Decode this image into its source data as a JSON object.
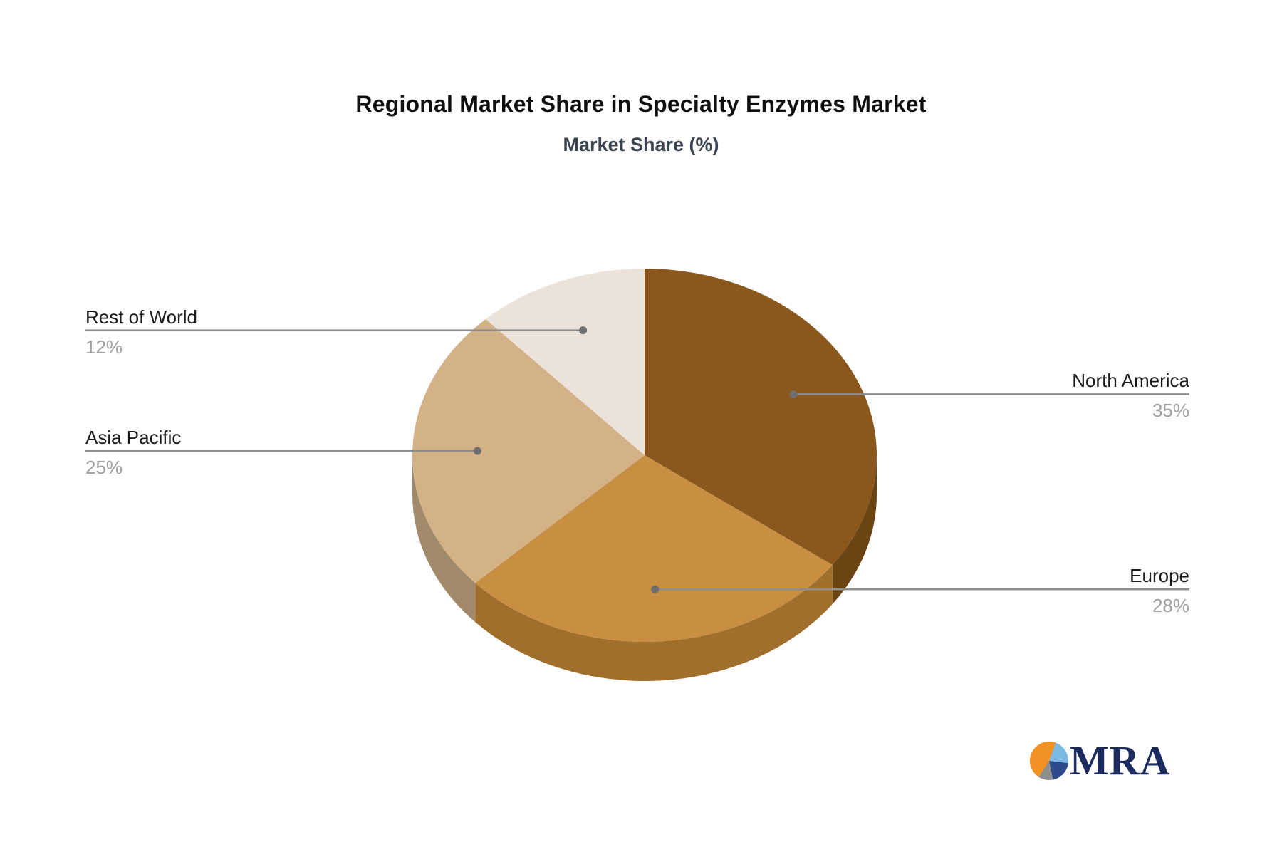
{
  "chart_data": {
    "type": "pie",
    "style": "3d",
    "title": "Regional Market Share in Specialty Enzymes Market",
    "subtitle": "Market Share (%)",
    "unit": "%",
    "start_angle_deg": 0,
    "direction": "clockwise",
    "legend_position": "callout-labels",
    "slices": [
      {
        "label": "North America",
        "value": 35,
        "pct_label": "35%",
        "color": "#8a571c",
        "side_color": "#6b4414",
        "label_side": "right"
      },
      {
        "label": "Europe",
        "value": 28,
        "pct_label": "28%",
        "color": "#c88e41",
        "side_color": "#a06f2c",
        "label_side": "right"
      },
      {
        "label": "Asia Pacific",
        "value": 25,
        "pct_label": "25%",
        "color": "#d4b288",
        "side_color": "#a18a69",
        "label_side": "left"
      },
      {
        "label": "Rest of World",
        "value": 12,
        "pct_label": "12%",
        "color": "#ebe3d9",
        "side_color": "#b9ac9e",
        "label_side": "left"
      }
    ],
    "colors": {
      "label_text": "#1b1b1b",
      "pct_text": "#a0a0a0",
      "leader_line": "#8d8d8d",
      "leader_dot": "#6e6e6e",
      "title_text": "#0f0f0f",
      "subtitle_text": "#3a4350"
    }
  },
  "logo": {
    "text": "MRA",
    "icon": "pie-chart-icon",
    "colors": {
      "orange": "#f19123",
      "light_blue": "#7cb8e4",
      "navy": "#2c4a8c",
      "gray": "#8e8e8e",
      "text": "#1b2b5e"
    }
  }
}
